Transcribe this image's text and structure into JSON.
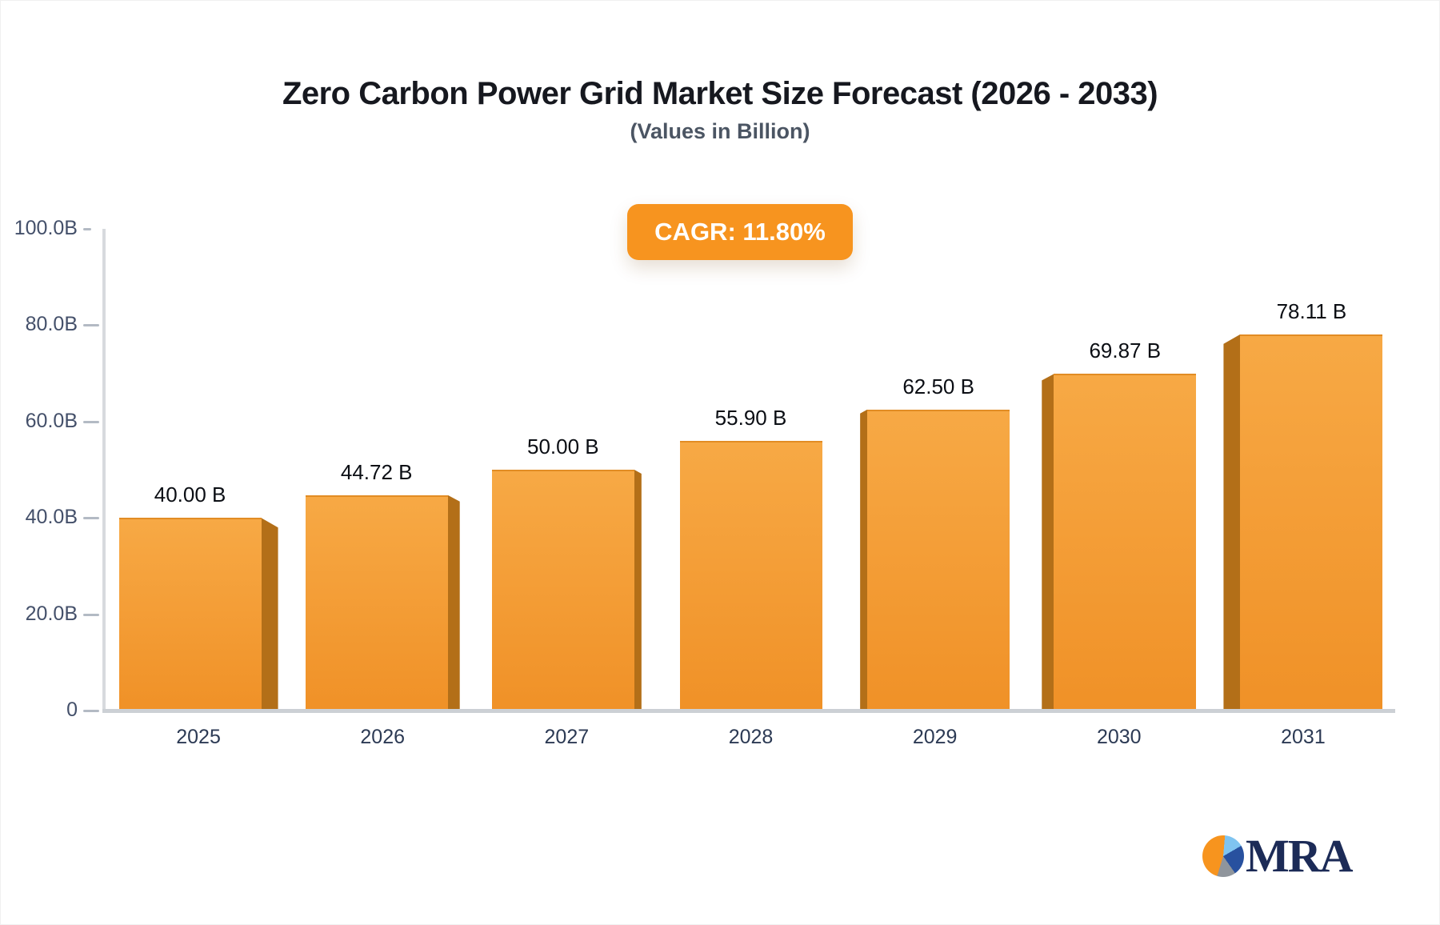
{
  "title": "Zero Carbon Power Grid Market Size Forecast (2026 - 2033)",
  "subtitle": "(Values in Billion)",
  "badge": {
    "label": "CAGR: 11.80%",
    "bg": "#f7941f",
    "text_color": "#ffffff"
  },
  "chart_data": {
    "type": "bar",
    "categories": [
      "2025",
      "2026",
      "2027",
      "2028",
      "2029",
      "2030",
      "2031"
    ],
    "values": [
      40.0,
      44.72,
      50.0,
      55.9,
      62.5,
      69.87,
      78.11
    ],
    "value_labels": [
      "40.00 B",
      "44.72 B",
      "50.00 B",
      "55.90 B",
      "62.50 B",
      "69.87 B",
      "78.11 B"
    ],
    "title": "Zero Carbon Power Grid Market Size Forecast (2026 - 2033)",
    "subtitle": "(Values in Billion)",
    "xlabel": "",
    "ylabel": "",
    "ylim": [
      0,
      100
    ],
    "y_ticks": [
      {
        "label": "100.0B",
        "value": 100
      },
      {
        "label": "80.0B",
        "value": 80
      },
      {
        "label": "60.0B",
        "value": 60
      },
      {
        "label": "40.0B",
        "value": 40
      },
      {
        "label": "20.0B",
        "value": 20
      },
      {
        "label": "0",
        "value": 0
      }
    ],
    "grid": false,
    "legend": "none",
    "effect": "3d-perspective-columns",
    "annotation": "CAGR: 11.80%",
    "colors": {
      "bar_face_top": "#f7a945",
      "bar_face_bottom": "#f09127",
      "bar_side": "#b36f18",
      "axis": "#d7dade",
      "tick_label": "#44506a",
      "category_label": "#2c3a54",
      "value_label": "#0b0e14"
    }
  },
  "logo": {
    "text": "MRA",
    "icon": "pie-chart-icon",
    "colors": {
      "orange": "#f7941e",
      "light_blue": "#7fc4f0",
      "navy": "#28519f",
      "gray": "#8f959c",
      "text": "#1c2b57"
    }
  }
}
